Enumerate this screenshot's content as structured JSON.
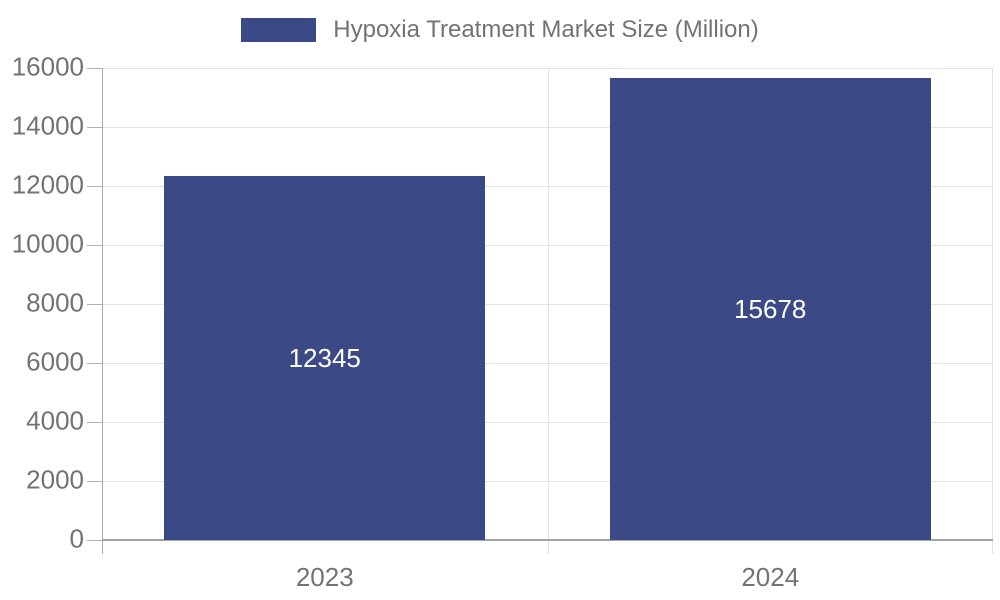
{
  "legend": {
    "label": "Hypoxia Treatment Market Size (Million)"
  },
  "chart_data": {
    "type": "bar",
    "title": "Hypoxia Treatment Market Size (Million)",
    "categories": [
      "2023",
      "2024"
    ],
    "series": [
      {
        "name": "Hypoxia Treatment Market Size (Million)",
        "values": [
          12345,
          15678
        ]
      }
    ],
    "bar_value_labels": [
      "12345",
      "15678"
    ],
    "xlabel": "",
    "ylabel": "",
    "ylim": [
      0,
      16000
    ],
    "ytick_step": 2000,
    "yticks": [
      0,
      2000,
      4000,
      6000,
      8000,
      10000,
      12000,
      14000,
      16000
    ],
    "grid": true,
    "legend_position": "top-center",
    "bar_width_fraction": 0.72,
    "colors": {
      "bar": "#3B4A86",
      "bar_label": "#FFFFFF",
      "axis_line": "#A3A3A3",
      "y_axis_line": "#A9A9A9",
      "gridline": "#E3E3E3",
      "tick_mark": "#B3B3B3",
      "tick_label": "#737373",
      "legend_text": "#737373"
    }
  }
}
